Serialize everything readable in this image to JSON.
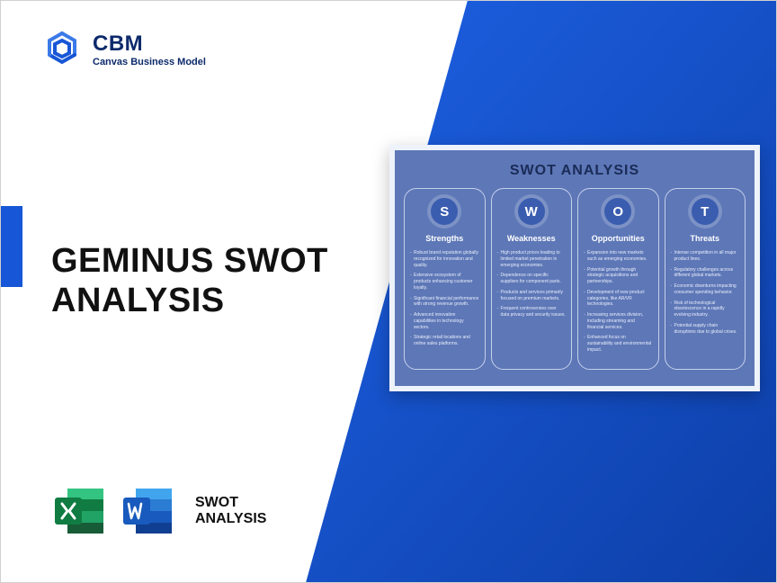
{
  "brand": {
    "title": "CBM",
    "subtitle": "Canvas Business Model",
    "logo_color_primary": "#1756d6",
    "logo_color_secondary": "#3b7ae8"
  },
  "main_heading_line1": "GEMINUS SWOT",
  "main_heading_line2": "ANALYSIS",
  "accent_color": "#1756d6",
  "diagonal_gradient_start": "#1e62e6",
  "diagonal_gradient_end": "#0d3fa8",
  "apps": {
    "excel_color_dark": "#107c41",
    "excel_color_light": "#21a366",
    "word_color_dark": "#185abd",
    "word_color_light": "#2b7cd3",
    "label_line1": "SWOT",
    "label_line2": "ANALYSIS"
  },
  "swot": {
    "card_bg": "#5d77b7",
    "title": "SWOT ANALYSIS",
    "title_color": "#1a2b57",
    "badge_bg": "#3b5db0",
    "border_color": "#c5d0eb",
    "columns": [
      {
        "letter": "S",
        "heading": "Strengths",
        "items": [
          "Robust brand reputation globally recognized for innovation and quality.",
          "Extensive ecosystem of products enhancing customer loyalty.",
          "Significant financial performance with strong revenue growth.",
          "Advanced innovation capabilities in technology sectors.",
          "Strategic retail locations and online sales platforms."
        ]
      },
      {
        "letter": "W",
        "heading": "Weaknesses",
        "items": [
          "High product prices leading to limited market penetration in emerging economies.",
          "Dependence on specific suppliers for component parts.",
          "Products and services primarily focused on premium markets.",
          "Frequent controversies over data privacy and security issues."
        ]
      },
      {
        "letter": "O",
        "heading": "Opportunities",
        "items": [
          "Expansion into new markets such as emerging economies.",
          "Potential growth through strategic acquisitions and partnerships.",
          "Development of new product categories, like AR/VR technologies.",
          "Increasing services division, including streaming and financial services.",
          "Enhanced focus on sustainability and environmental impact."
        ]
      },
      {
        "letter": "T",
        "heading": "Threats",
        "items": [
          "Intense competition in all major product lines.",
          "Regulatory challenges across different global markets.",
          "Economic downturns impacting consumer spending behavior.",
          "Risk of technological obsolescence in a rapidly evolving industry.",
          "Potential supply chain disruptions due to global crises."
        ]
      }
    ]
  }
}
